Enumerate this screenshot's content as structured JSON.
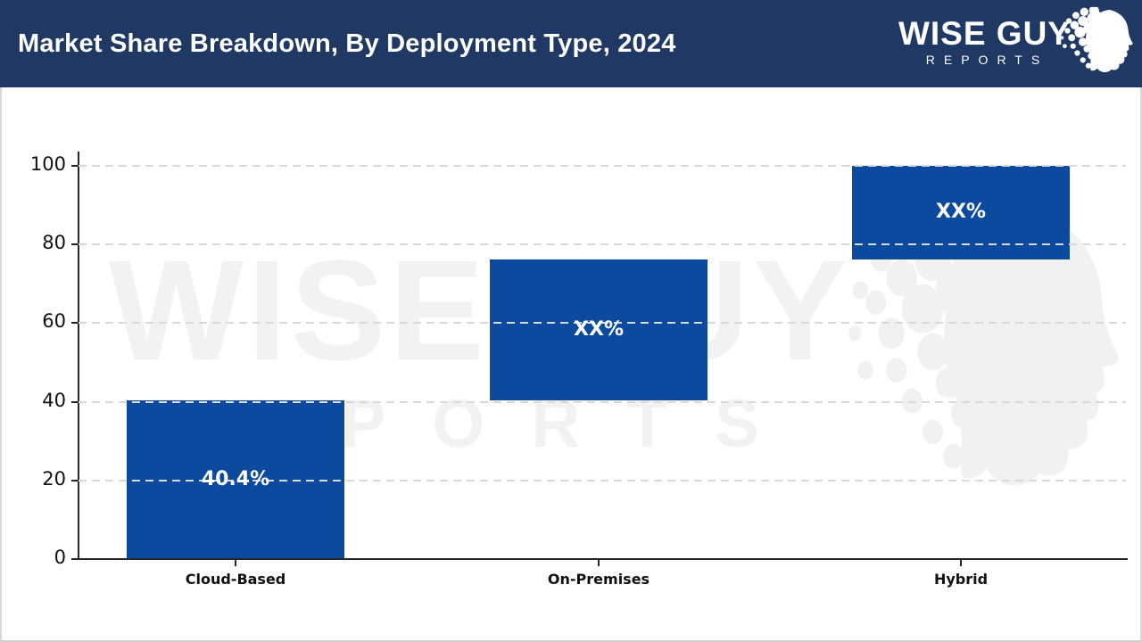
{
  "header": {
    "title": "Market Share Breakdown, By Deployment Type, 2024",
    "brand": {
      "line1": "WISE GUY",
      "line2": "REPORTS"
    }
  },
  "watermark": {
    "line1": "WISE GUY",
    "line2": "REPORTS"
  },
  "colors": {
    "header_bg": "#1f3864",
    "bar": "#0b4a9f",
    "gridline": "#d9d9d9",
    "axis": "#262626",
    "bar_label_text": "#ffffff",
    "watermark": "#f2f2f2"
  },
  "chart_data": {
    "type": "bar",
    "subtype": "waterfall",
    "title": "Market Share Breakdown, By Deployment Type, 2024",
    "categories": [
      "Cloud-Based",
      "On-Premises",
      "Hybrid"
    ],
    "series": [
      {
        "name": "Market share (%)",
        "segments": [
          [
            0,
            40.4
          ],
          [
            40.4,
            76.2
          ],
          [
            76.3,
            100
          ]
        ]
      }
    ],
    "bar_labels": [
      "40.4%",
      "XX%",
      "XX%"
    ],
    "bar_color": "#0b4a9f",
    "xlabel": "",
    "ylabel": "",
    "ylim": [
      0,
      100
    ],
    "yticks": [
      0,
      20,
      40,
      60,
      80,
      100
    ],
    "grid": "horizontal-dashed",
    "legend": false
  }
}
